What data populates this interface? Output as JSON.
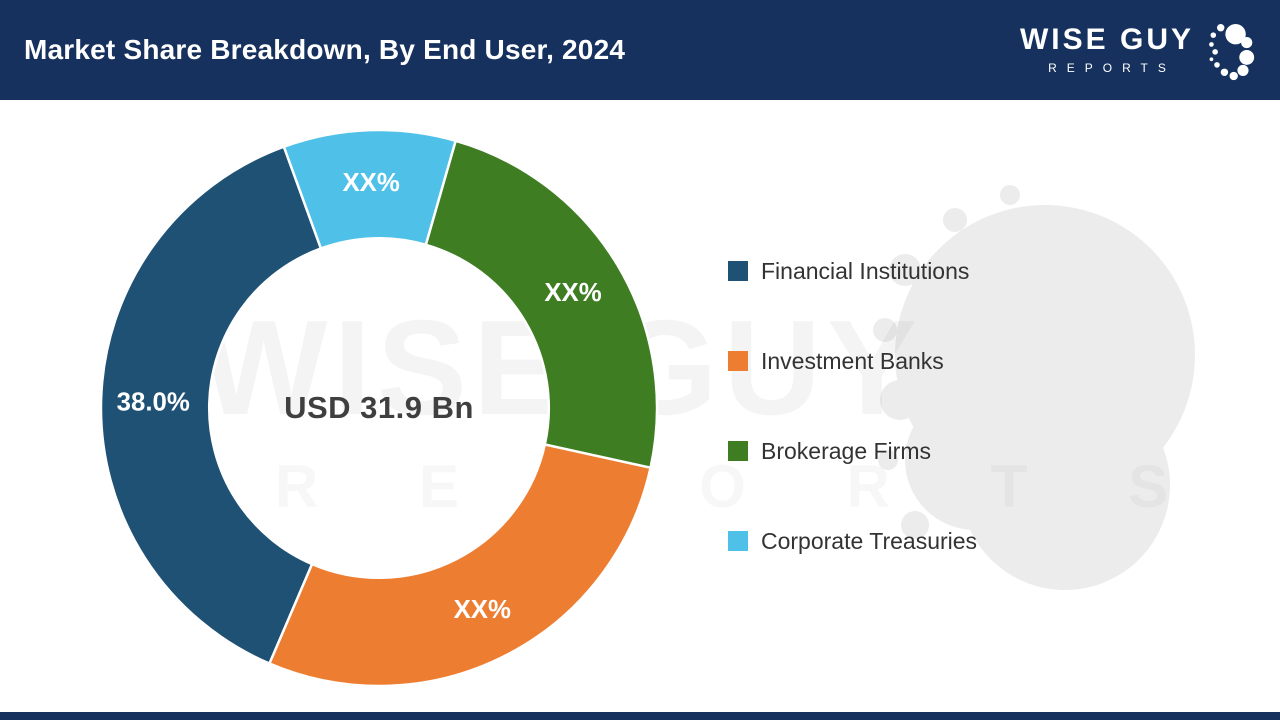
{
  "header": {
    "title": "Market Share Breakdown, By End User, 2024",
    "logo": {
      "line1": "WISE GUY",
      "line2": "REPORTS"
    }
  },
  "watermark": {
    "line1": "WISE GUY",
    "line2": "R E P O R T S"
  },
  "theme": {
    "header_bg": "#16315e",
    "footer_bg": "#16315e",
    "title_color": "#ffffff",
    "center_label_color": "#3f3f3f",
    "legend_text_color": "#333333",
    "slice_label_color": "#ffffff",
    "slice_divider_color": "#ffffff"
  },
  "chart_data": {
    "type": "pie",
    "subtype": "donut",
    "title": "Market Share Breakdown, By End User, 2024",
    "center_label": "USD 31.9 Bn",
    "start_angle_deg": 110,
    "direction": "counterclockwise",
    "inner_radius_ratio": 0.61,
    "legend_position": "right",
    "segments": [
      {
        "label": "Financial Institutions",
        "value": 38.0,
        "display_label": "38.0%",
        "color": "#1f5174"
      },
      {
        "label": "Investment Banks",
        "value": 28.0,
        "display_label": "XX%",
        "color": "#ed7d31"
      },
      {
        "label": "Brokerage Firms",
        "value": 24.0,
        "display_label": "XX%",
        "color": "#3f7d23"
      },
      {
        "label": "Corporate Treasuries",
        "value": 10.0,
        "display_label": "XX%",
        "color": "#4fc0e8"
      }
    ]
  }
}
